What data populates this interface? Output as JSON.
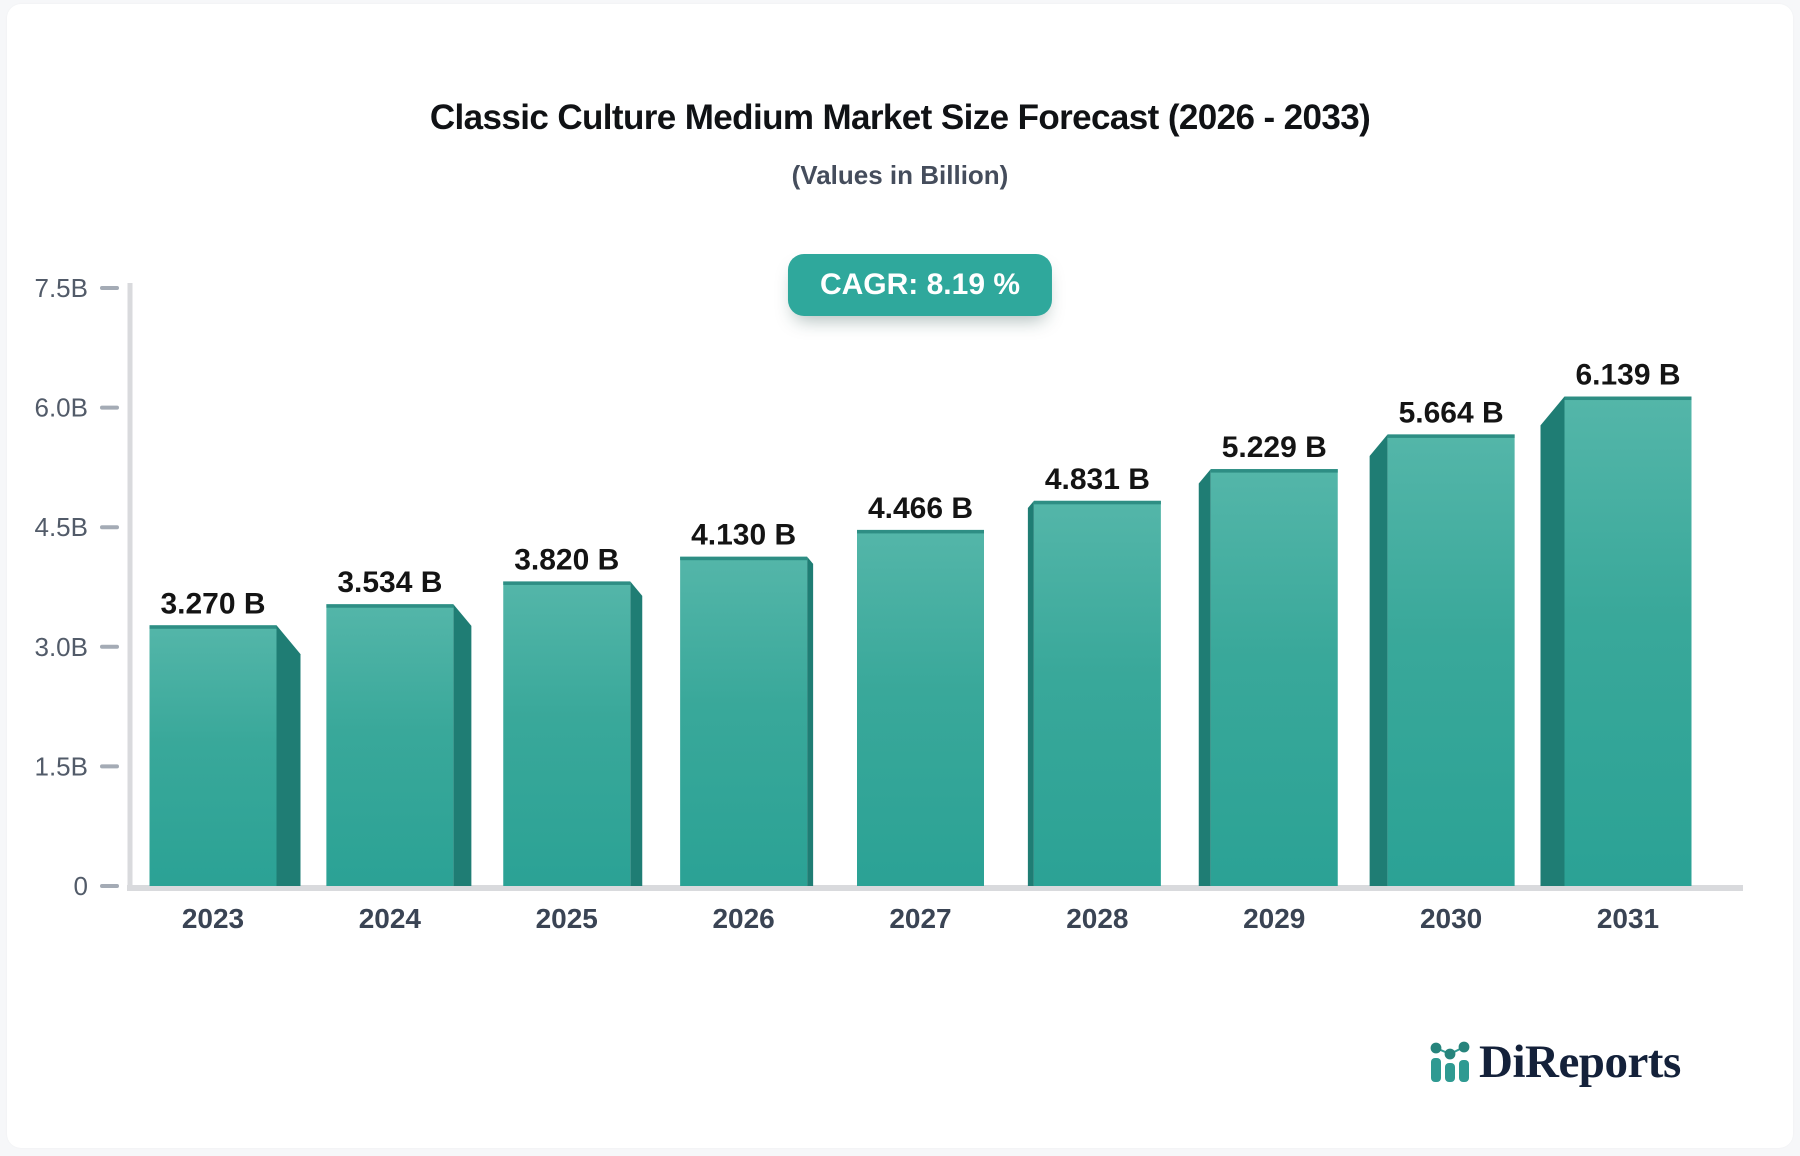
{
  "header": {
    "title": "Classic Culture Medium Market Size Forecast (2026 - 2033)",
    "subtitle": "(Values in Billion)"
  },
  "badge": {
    "label": "CAGR: 8.19 %"
  },
  "chart_data": {
    "type": "bar",
    "title": "Classic Culture Medium Market Size Forecast (2026 - 2033)",
    "subtitle": "(Values in Billion)",
    "annotation": "CAGR: 8.19 %",
    "categories": [
      "2023",
      "2024",
      "2025",
      "2026",
      "2027",
      "2028",
      "2029",
      "2030",
      "2031"
    ],
    "values": [
      3.27,
      3.534,
      3.82,
      4.13,
      4.466,
      4.831,
      5.229,
      5.664,
      6.139
    ],
    "value_labels": [
      "3.270 B",
      "3.534 B",
      "3.820 B",
      "4.130 B",
      "4.466 B",
      "4.831 B",
      "5.229 B",
      "5.664 B",
      "6.139 B"
    ],
    "xlabel": "",
    "ylabel": "",
    "ylim": [
      0,
      7.5
    ],
    "grid": false,
    "legend": false,
    "yticks": [
      {
        "value": 7.5,
        "label": "7.5B"
      },
      {
        "value": 6.0,
        "label": "6.0B"
      },
      {
        "value": 4.5,
        "label": "4.5B"
      },
      {
        "value": 3.0,
        "label": "3.0B"
      },
      {
        "value": 1.5,
        "label": "1.5B"
      },
      {
        "value": 0,
        "label": "0"
      }
    ],
    "colors": {
      "bar_face_top": "#54b6a9",
      "bar_face_mid": "#39a89a",
      "bar_face_bottom": "#2ba295",
      "bar_side": "#1f7d74",
      "bar_cap": "#2e8e84",
      "axis_line": "#d9dadd",
      "tick_mark": "#a4abb5",
      "ytick_label": "#525b69",
      "category_label": "#3a4454",
      "value_label": "#141414",
      "badge_bg": "#2fa89c",
      "badge_text": "#ffffff"
    }
  },
  "logo": {
    "text": "DiReports",
    "icon": "bar-chart-logo-icon",
    "text_color": "#14213a",
    "accent_color": "#2f9a92"
  }
}
